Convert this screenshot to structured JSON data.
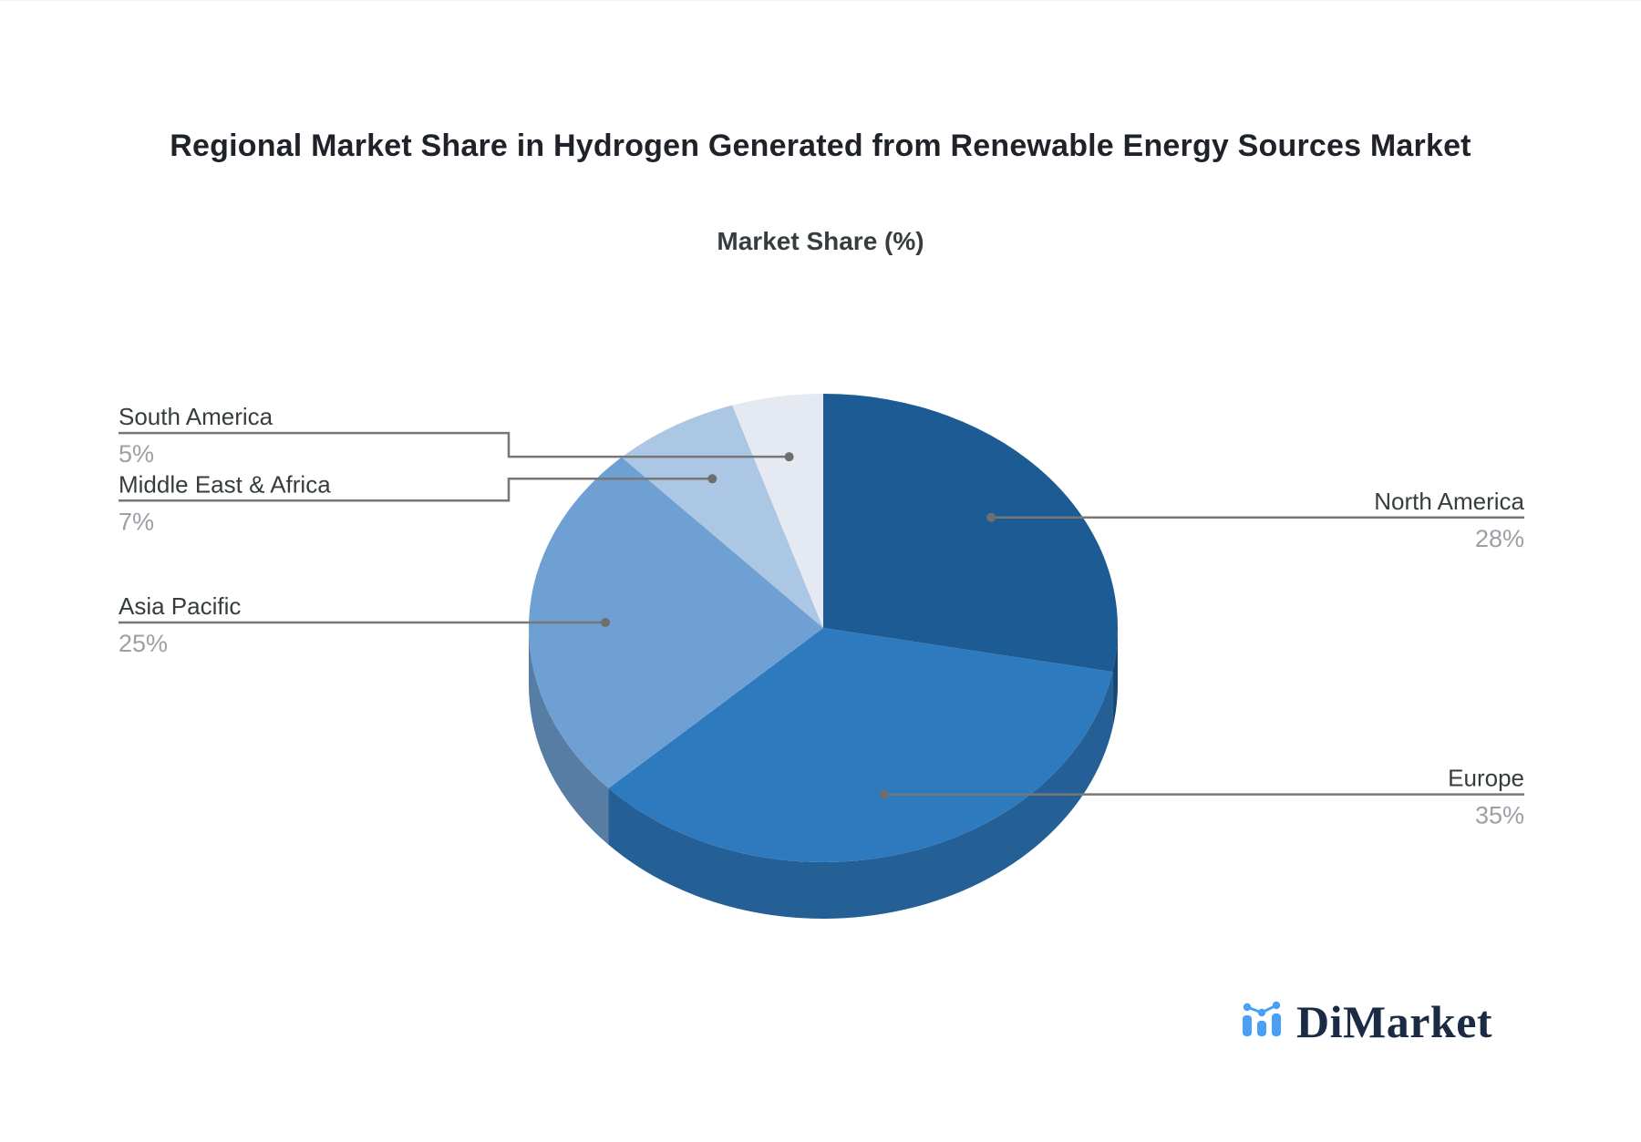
{
  "chart_data": {
    "type": "pie",
    "title": "Regional Market Share in Hydrogen Generated from Renewable Energy Sources Market",
    "subtitle": "Market Share (%)",
    "unit": "%",
    "start_angle": "top",
    "direction": "clockwise",
    "effect": "3d",
    "legend": "callout-labels",
    "categories": [
      "North America",
      "Europe",
      "Asia Pacific",
      "Middle East & Africa",
      "South America"
    ],
    "values": [
      28,
      35,
      25,
      7,
      5
    ],
    "series": [
      {
        "label": "North America",
        "value": 28,
        "display": "28%",
        "color": "#1d5b94",
        "leader": "plain-right"
      },
      {
        "label": "Europe",
        "value": 35,
        "display": "35%",
        "color": "#2e7abf",
        "leader": "plain-right"
      },
      {
        "label": "Asia Pacific",
        "value": 25,
        "display": "25%",
        "color": "#6fa0d3",
        "leader": "straight-left"
      },
      {
        "label": "Middle East & Africa",
        "value": 7,
        "display": "7%",
        "color": "#abc7e3",
        "leader": "elbow-up-left"
      },
      {
        "label": "South America",
        "value": 5,
        "display": "5%",
        "color": "#e5eaf2",
        "leader": "elbow-down-left"
      }
    ],
    "style": {
      "leader_line_color": "#777777",
      "leader_dot_color": "#6e6e6e",
      "label_color": "#373d3f",
      "value_color": "#9aa0a5"
    }
  },
  "logo": {
    "text": "DiMarket",
    "icon": "bar-line-chart-icon",
    "icon_color": "#49a0f6",
    "text_color": "#1c2b45"
  }
}
